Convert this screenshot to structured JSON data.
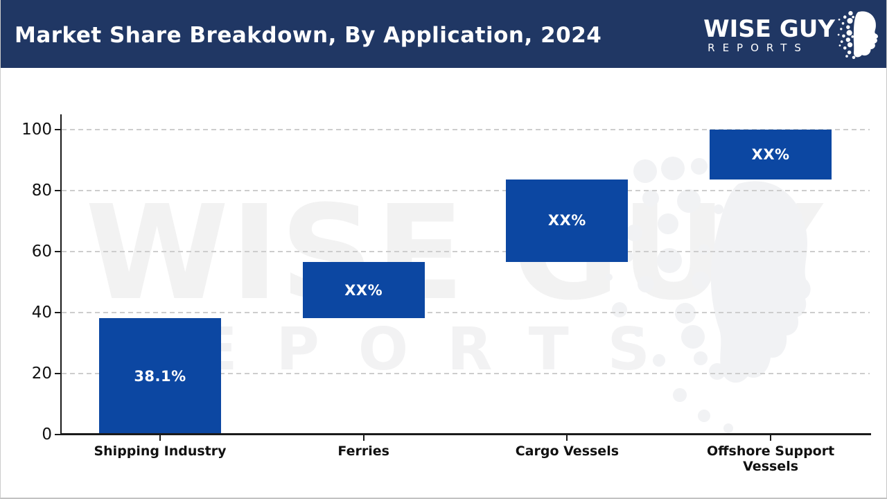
{
  "header": {
    "title": "Market Share Breakdown, By Application, 2024",
    "logo": {
      "line1": "WISE GUY",
      "line2": "REPORTS"
    }
  },
  "watermark": {
    "line1": "WISE GUY",
    "line2": "REPORTS"
  },
  "colors": {
    "header_bg": "#203764",
    "bar": "#0c47a2",
    "grid": "#cdcdcd",
    "axis": "#1a1a1a",
    "title_text": "#ffffff",
    "watermark": "#f2f2f2"
  },
  "chart_data": {
    "type": "bar",
    "subtype": "waterfall",
    "title": "Market Share Breakdown, By Application, 2024",
    "xlabel": "",
    "ylabel": "",
    "categories": [
      "Shipping Industry",
      "Ferries",
      "Cargo Vessels",
      "Offshore Support Vessels"
    ],
    "segments": [
      {
        "category": "Shipping Industry",
        "start": 0,
        "end": 38.1,
        "value": 38.1,
        "label": "38.1%"
      },
      {
        "category": "Ferries",
        "start": 38.1,
        "end": 56.6,
        "value": 18.5,
        "label": "XX%"
      },
      {
        "category": "Cargo Vessels",
        "start": 56.6,
        "end": 83.7,
        "value": 27.1,
        "label": "XX%"
      },
      {
        "category": "Offshore Support Vessels",
        "start": 83.7,
        "end": 100,
        "value": 16.3,
        "label": "XX%"
      }
    ],
    "yticks": [
      0,
      20,
      40,
      60,
      80,
      100
    ],
    "ylim": [
      0,
      105
    ],
    "bar_color": "#0c47a2",
    "grid": "horizontal dashed",
    "legend": "none"
  }
}
